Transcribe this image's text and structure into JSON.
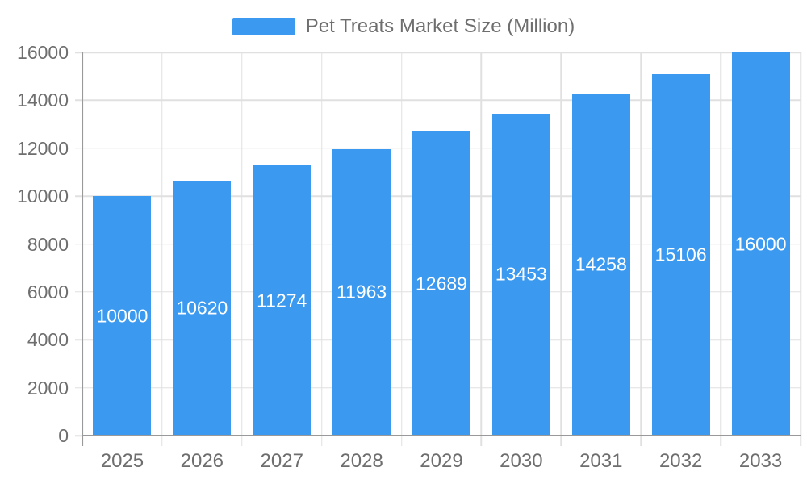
{
  "legend": {
    "label": "Pet Treats Market Size (Million)"
  },
  "chart_data": {
    "type": "bar",
    "title": "Pet Treats Market Size (Million)",
    "series_name": "Pet Treats Market Size (Million)",
    "categories": [
      "2025",
      "2026",
      "2027",
      "2028",
      "2029",
      "2030",
      "2031",
      "2032",
      "2033"
    ],
    "values": [
      10000,
      10620,
      11274,
      11963,
      12689,
      13453,
      14258,
      15106,
      16000
    ],
    "xlabel": "",
    "ylabel": "",
    "ylim": [
      0,
      16000
    ],
    "yticks": [
      0,
      2000,
      4000,
      6000,
      8000,
      10000,
      12000,
      14000,
      16000
    ],
    "grid": true,
    "legend_position": "top-center",
    "value_label_style": "white, centered inside bars",
    "colors": {
      "bar": "#3B9AF0",
      "grid": "#E0E0E0",
      "axis": "#999999",
      "text": "#6E6E6E",
      "value_label": "#FFFFFF",
      "background": "#FFFFFF"
    }
  }
}
